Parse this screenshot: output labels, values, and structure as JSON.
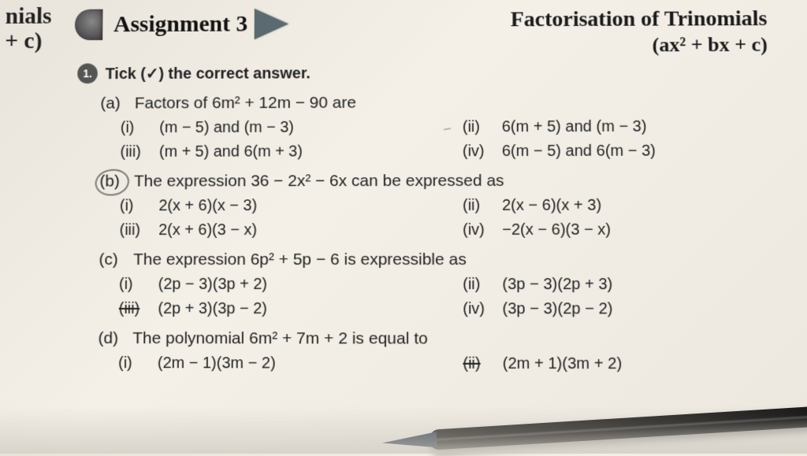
{
  "leftCut": {
    "line1": "nials",
    "line2": "+ c)"
  },
  "assignment": "Assignment 3",
  "topic": {
    "main": "Factorisation of Trinomials",
    "sub": "(ax² + bx + c)"
  },
  "q1": {
    "num": "1.",
    "instruction": "Tick (✓) the correct answer.",
    "parts": [
      {
        "label": "(a)",
        "stem": "Factors of 6m² + 12m − 90 are",
        "circled": false,
        "opts": [
          {
            "label": "(i)",
            "text": "(m − 5) and (m − 3)",
            "mark": ""
          },
          {
            "label": "(ii)",
            "text": "6(m + 5) and (m − 3)",
            "mark": "tick"
          },
          {
            "label": "(iii)",
            "text": "(m + 5) and 6(m + 3)",
            "mark": ""
          },
          {
            "label": "(iv)",
            "text": "6(m − 5) and 6(m − 3)",
            "mark": ""
          }
        ]
      },
      {
        "label": "(b)",
        "stem": "The expression 36 − 2x² − 6x can be expressed as",
        "circled": true,
        "opts": [
          {
            "label": "(i)",
            "text": "2(x + 6)(x − 3)",
            "mark": ""
          },
          {
            "label": "(ii)",
            "text": "2(x − 6)(x + 3)",
            "mark": ""
          },
          {
            "label": "(iii)",
            "text": "2(x + 6)(3 − x)",
            "mark": ""
          },
          {
            "label": "(iv)",
            "text": "−2(x − 6)(3 − x)",
            "mark": ""
          }
        ]
      },
      {
        "label": "(c)",
        "stem": "The expression 6p² + 5p − 6 is expressible as",
        "circled": false,
        "opts": [
          {
            "label": "(i)",
            "text": "(2p − 3)(3p + 2)",
            "mark": ""
          },
          {
            "label": "(ii)",
            "text": "(3p − 3)(2p + 3)",
            "mark": ""
          },
          {
            "label": "(iii)",
            "text": "(2p + 3)(3p − 2)",
            "mark": "strike"
          },
          {
            "label": "(iv)",
            "text": "(3p − 3)(2p − 2)",
            "mark": ""
          }
        ]
      },
      {
        "label": "(d)",
        "stem": "The polynomial 6m² + 7m + 2 is equal to",
        "circled": false,
        "opts": [
          {
            "label": "(i)",
            "text": "(2m − 1)(3m − 2)",
            "mark": ""
          },
          {
            "label": "(ii)",
            "text": "(2m + 1)(3m + 2)",
            "mark": "strike"
          }
        ]
      }
    ]
  },
  "colors": {
    "text": "#222222",
    "circle": "#555555",
    "pillCap": "#555555",
    "pillTip": "#5a6a70",
    "background": "#efe9df"
  }
}
